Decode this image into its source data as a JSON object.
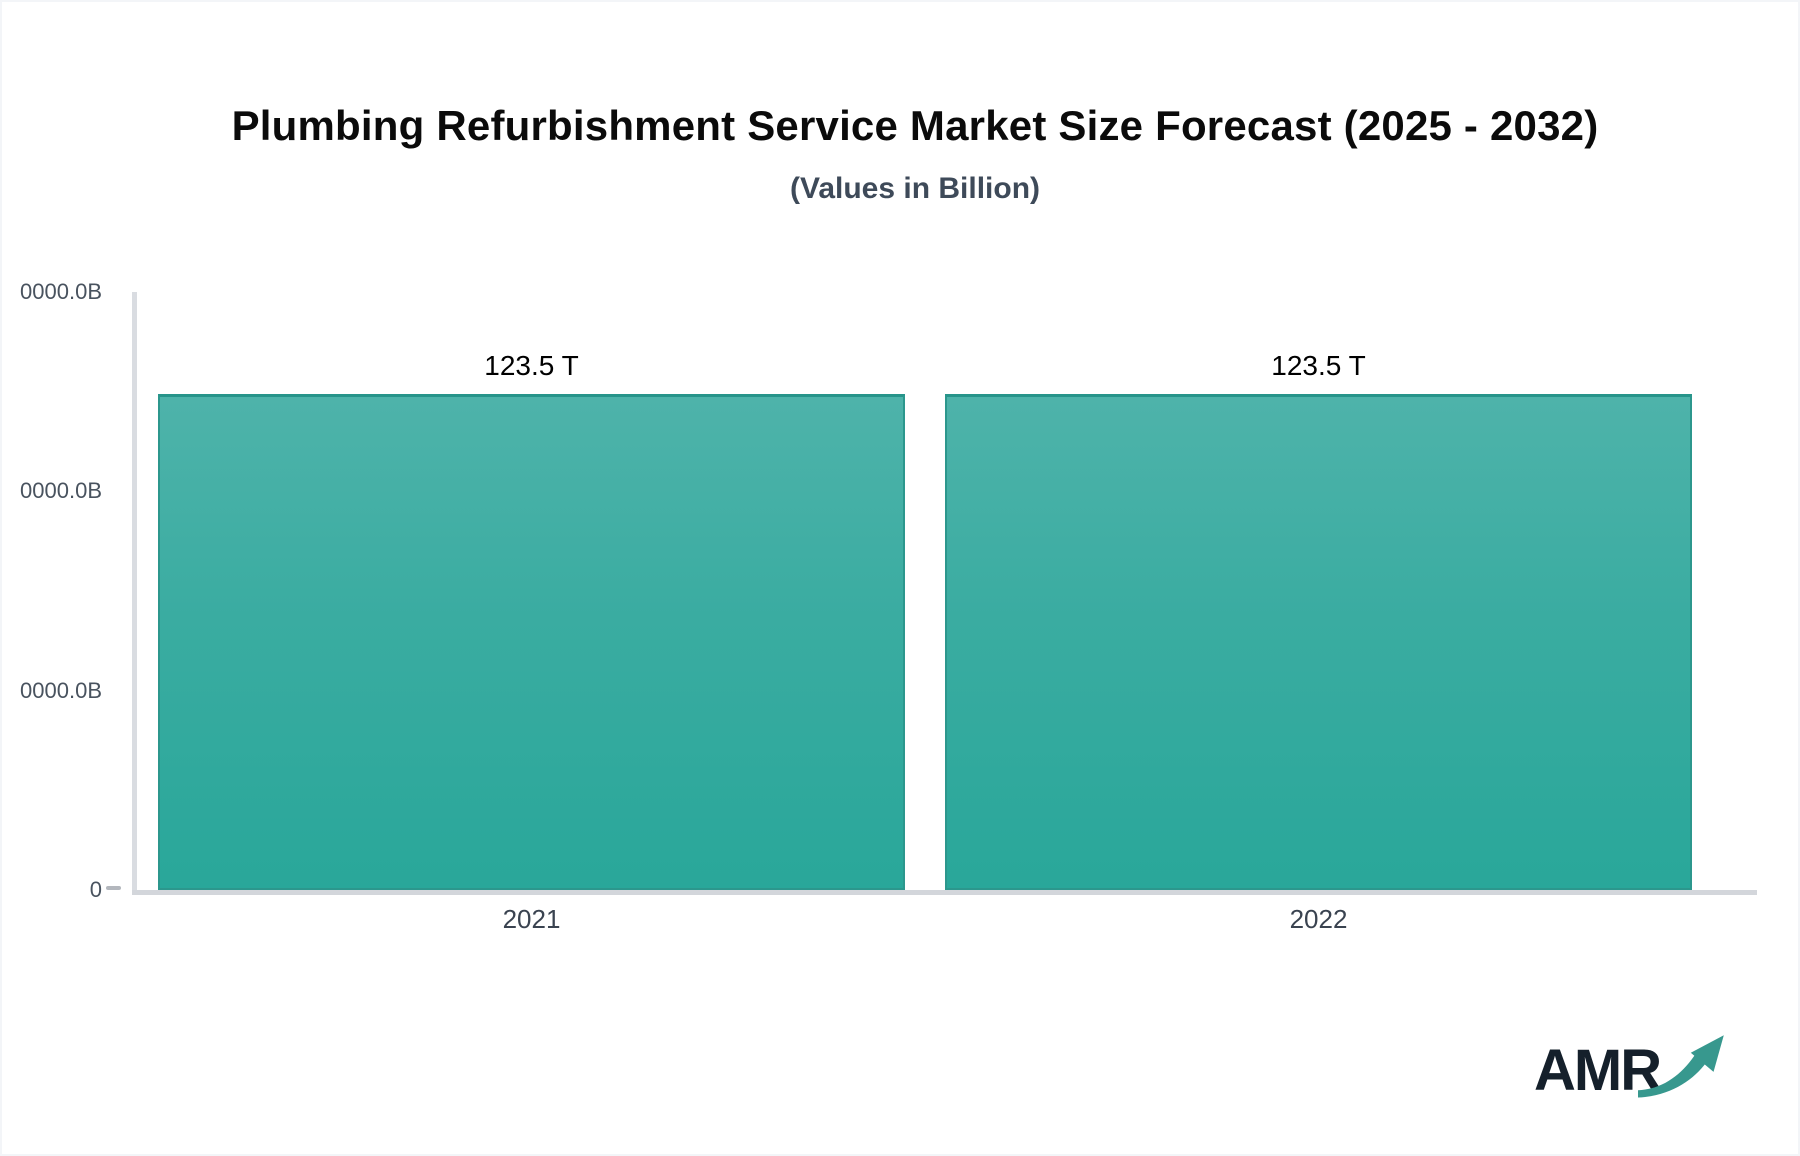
{
  "chart_data": {
    "type": "bar",
    "title": "Plumbing Refurbishment Service Market Size Forecast (2025 - 2032)",
    "subtitle": "(Values in Billion)",
    "categories": [
      "2021",
      "2022"
    ],
    "values": [
      123.5,
      123.5
    ],
    "bar_labels": [
      "123.5 T",
      "123.5 T"
    ],
    "y_ticks_top_to_bottom": [
      "0000.0B",
      "0000.0B",
      "0000.0B",
      "0"
    ],
    "ylim": [
      0,
      148.9
    ],
    "xlabel": "",
    "ylabel": "",
    "grid": false,
    "legend": false,
    "bar_color_top": "#4eb3aa",
    "bar_color_bottom": "#29a79a",
    "bar_border_color": "#2c978d"
  },
  "logo": {
    "text": "AMR",
    "text_color": "#15202b",
    "arrow_color": "#37988e"
  },
  "colors": {
    "axis_line": "#d9dce1",
    "baseline": "#d3d6db",
    "tick_label": "#49535f",
    "x_label": "#3a4350",
    "title": "#0b0b0b",
    "subtitle": "#3e4a59",
    "page_border": "#f3f5f8",
    "background": "#ffffff"
  }
}
